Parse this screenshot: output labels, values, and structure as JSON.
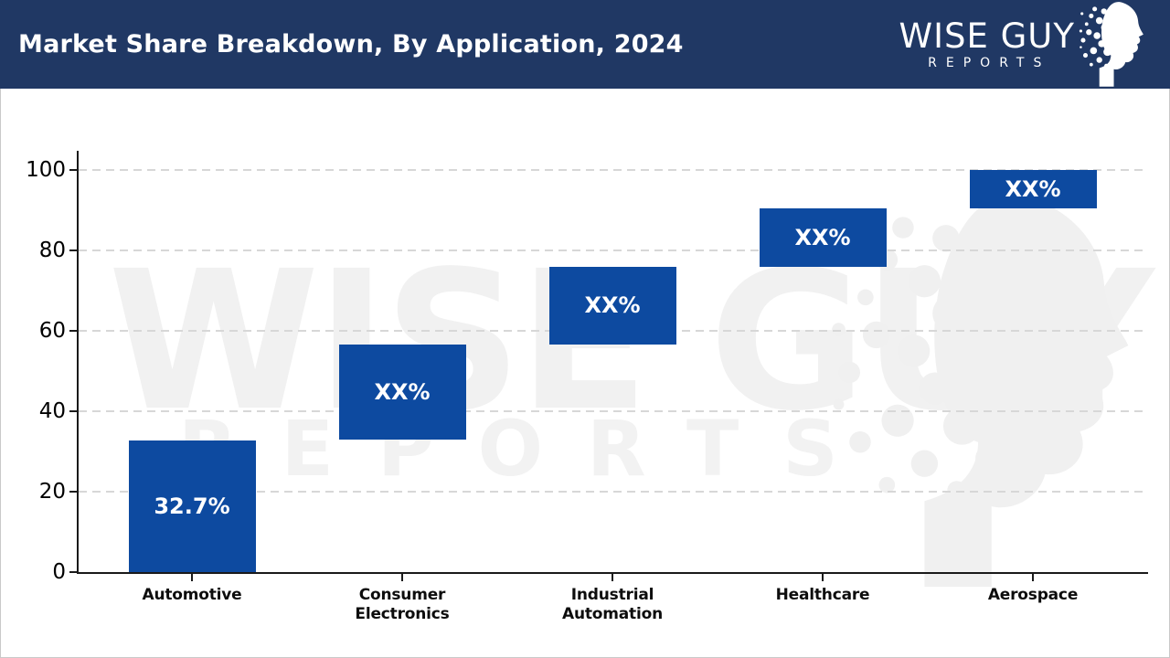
{
  "header": {
    "title": "Market Share Breakdown, By Application, 2024",
    "bg_color": "#203864",
    "logo": {
      "line1": "WISE GUY",
      "line2": "REPORTS"
    }
  },
  "watermark": {
    "line1": "WISE GUY",
    "line2": "REPORTS"
  },
  "chart_data": {
    "type": "bar",
    "subtype": "floating-waterfall",
    "title": "Market Share Breakdown, By Application, 2024",
    "categories": [
      "Automotive",
      "Consumer Electronics",
      "Industrial Automation",
      "Healthcare",
      "Aerospace"
    ],
    "segments": [
      {
        "category": "Automotive",
        "start": 0,
        "end": 32.7,
        "label": "32.7%"
      },
      {
        "category": "Consumer Electronics",
        "start": 33,
        "end": 56.5,
        "label": "XX%"
      },
      {
        "category": "Industrial Automation",
        "start": 56.5,
        "end": 76,
        "label": "XX%"
      },
      {
        "category": "Healthcare",
        "start": 76,
        "end": 90.5,
        "label": "XX%"
      },
      {
        "category": "Aerospace",
        "start": 90.5,
        "end": 100,
        "label": "XX%"
      }
    ],
    "y_ticks": [
      0,
      20,
      40,
      60,
      80,
      100
    ],
    "ylim": [
      0,
      100
    ],
    "xlabel": "",
    "ylabel": "",
    "grid": "horizontal-dashed",
    "legend": "none",
    "bar_color": "#0d4aa0",
    "bar_label_color": "#ffffff"
  }
}
